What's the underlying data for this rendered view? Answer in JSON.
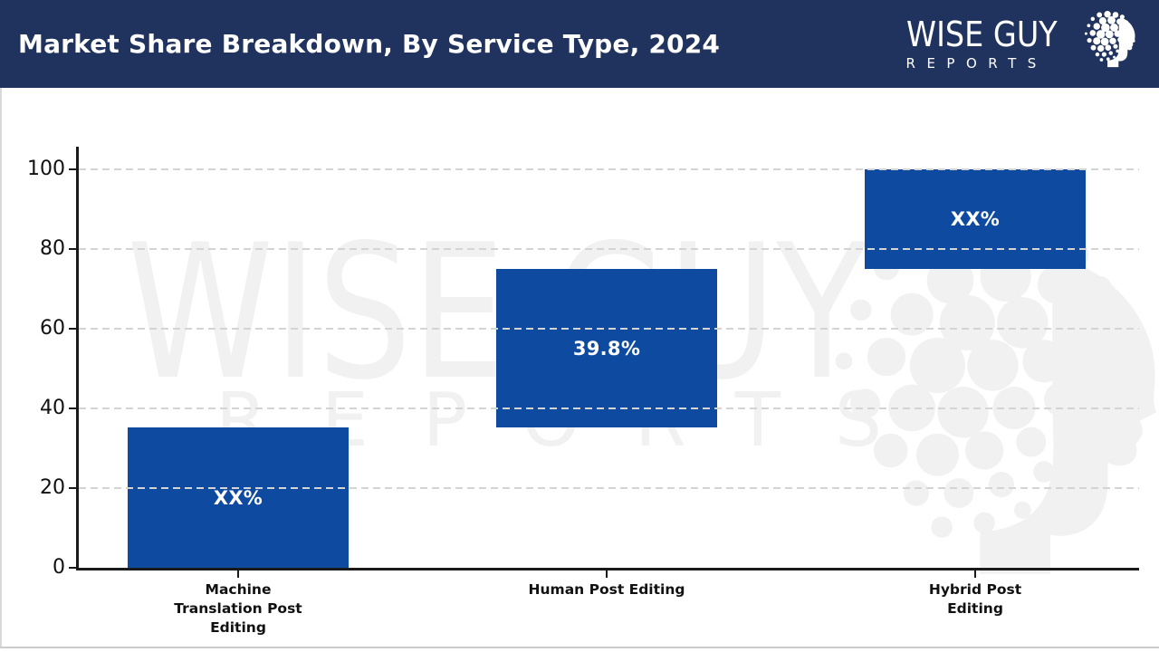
{
  "header": {
    "title": "Market Share Breakdown, By Service Type, 2024",
    "logo": {
      "line1": "WISE GUY",
      "line2": "REPORTS"
    }
  },
  "watermark": {
    "line1": "WISE GUY",
    "line2": "REPORTS"
  },
  "chart_data": {
    "type": "bar",
    "subtype": "floating-segment-waterfall",
    "title": "Market Share Breakdown, By Service Type, 2024",
    "categories": [
      "Machine Translation Post Editing",
      "Human Post Editing",
      "Hybrid Post Editing"
    ],
    "category_label_lines": [
      [
        "Machine",
        "Translation Post",
        "Editing"
      ],
      [
        "Human Post Editing"
      ],
      [
        "Hybrid Post",
        "Editing"
      ]
    ],
    "segments": [
      {
        "category": "Machine Translation Post Editing",
        "from": 0,
        "to": 35.2,
        "label": "XX%"
      },
      {
        "category": "Human Post Editing",
        "from": 35.2,
        "to": 75,
        "label": "39.8%"
      },
      {
        "category": "Hybrid Post Editing",
        "from": 75,
        "to": 100,
        "label": "XX%"
      }
    ],
    "xlabel": "",
    "ylabel": "",
    "yticks": [
      0,
      20,
      40,
      60,
      80,
      100
    ],
    "ylim": [
      0,
      105
    ],
    "grid": {
      "axis": "y",
      "style": "dashed"
    },
    "legend": "none",
    "colors": {
      "bar": "#0d4aa0",
      "bar_label": "#ffffff",
      "grid": "#d4d4d4",
      "axis": "#1a1a1a",
      "header_bg": "#20335e",
      "header_text": "#ffffff",
      "watermark": "#f1f1f1"
    }
  }
}
